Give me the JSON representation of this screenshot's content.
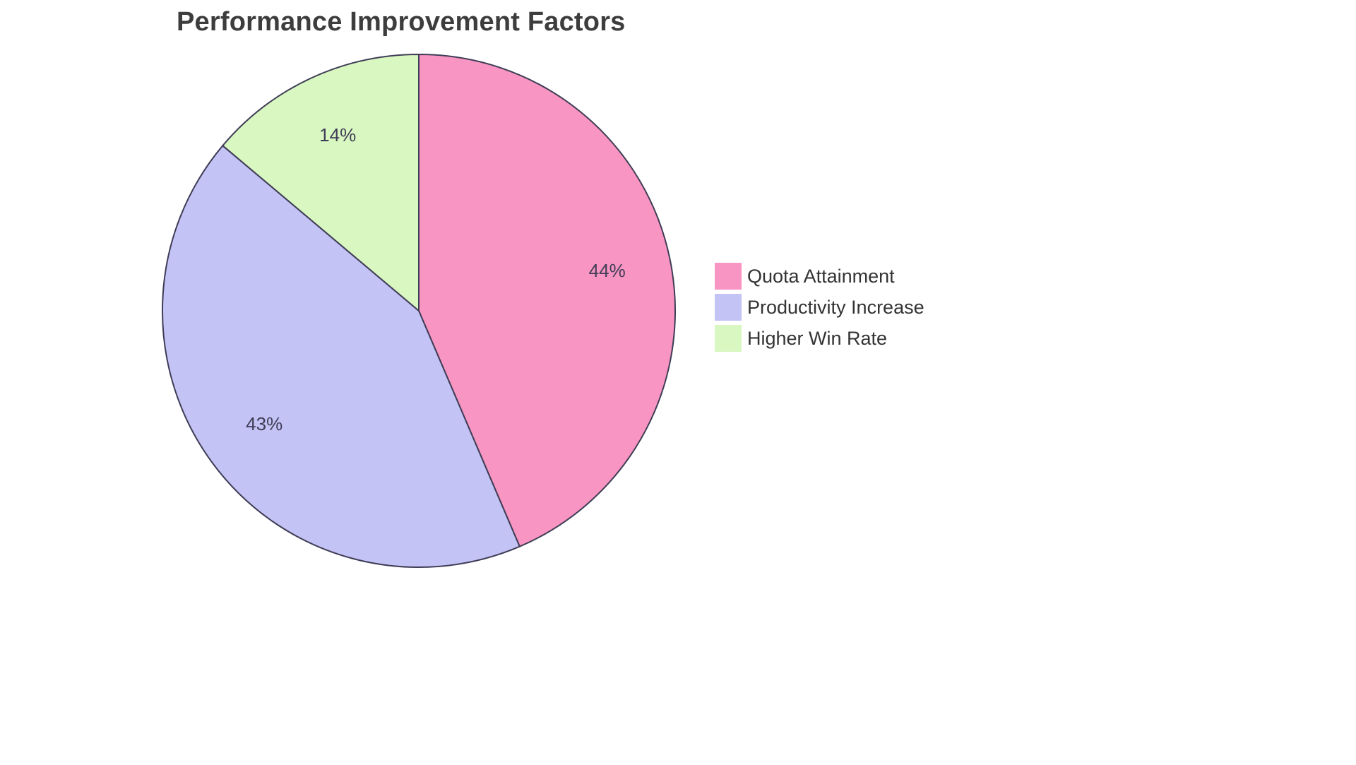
{
  "chart_data": {
    "type": "pie",
    "title": "Performance Improvement Factors",
    "labels": [
      "Quota Attainment",
      "Productivity Increase",
      "Higher Win Rate"
    ],
    "values": [
      44,
      43,
      14
    ],
    "percent_labels": [
      "44%",
      "43%",
      "14%"
    ],
    "colors": [
      "#F895C2",
      "#C4C3F5",
      "#D9F7C1"
    ],
    "stroke_color": "#3F3D56",
    "stroke_width": 2,
    "start_angle_deg": -90,
    "direction": "clockwise",
    "legend_position": "right",
    "label_color": "#3F3D56",
    "title_color": "#3D3D3D",
    "background": "#FFFFFF"
  }
}
